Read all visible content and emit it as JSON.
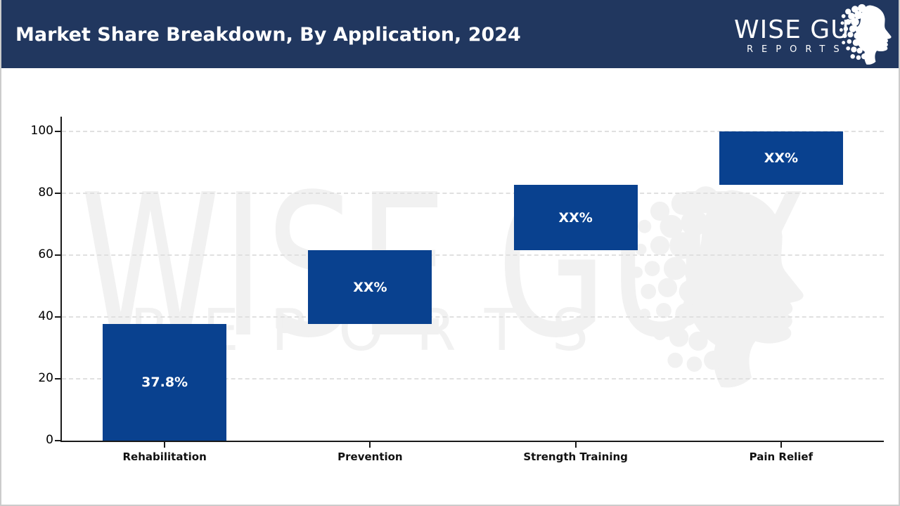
{
  "header": {
    "title": "Market Share Breakdown, By Application, 2024",
    "bg_color": "#21375f",
    "brand": {
      "line1": "WISE GUY",
      "line2": "REPORTS"
    }
  },
  "watermark": {
    "line1": "WISE GUY",
    "line2": "REPORTS"
  },
  "chart_data": {
    "type": "bar",
    "subtype": "waterfall",
    "title": "Market Share Breakdown, By Application, 2024",
    "categories": [
      "Rehabilitation",
      "Prevention",
      "Strength Training",
      "Pain Relief"
    ],
    "segments": [
      {
        "category": "Rehabilitation",
        "start": 0,
        "end": 37.8,
        "value": 37.8,
        "label": "37.8%"
      },
      {
        "category": "Prevention",
        "start": 37.8,
        "end": 61.5,
        "value": 23.7,
        "label": "XX%"
      },
      {
        "category": "Strength Training",
        "start": 61.5,
        "end": 82.8,
        "value": 21.3,
        "label": "XX%"
      },
      {
        "category": "Pain Relief",
        "start": 82.8,
        "end": 100,
        "value": 17.2,
        "label": "XX%"
      }
    ],
    "xlabel": "",
    "ylabel": "",
    "ylim": [
      0,
      104.5
    ],
    "yticks": [
      0,
      20,
      40,
      60,
      80,
      100
    ],
    "grid": "horizontal-dashed",
    "legend": "none",
    "bar_color": "#09418f",
    "bar_label_color": "#ffffff",
    "axis_color": "#1a1a1a",
    "gridline_color": "#e0e0e0",
    "watermark_color": "#f1f1f1"
  }
}
